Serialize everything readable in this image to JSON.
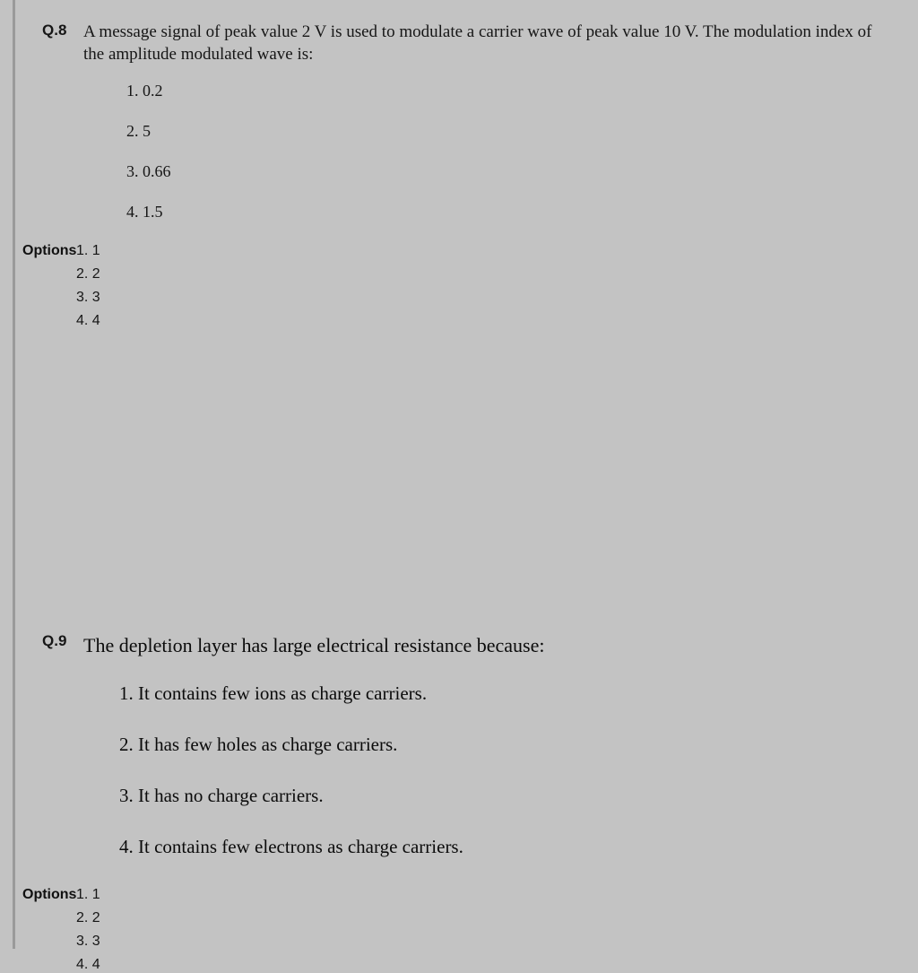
{
  "q8": {
    "number": "Q.8",
    "text": "A message signal of peak value 2 V is used to modulate a carrier wave of peak value 10 V. The modulation index of the amplitude modulated wave is:",
    "answers": [
      "1. 0.2",
      "2. 5",
      "3. 0.66",
      "4. 1.5"
    ],
    "options_label": "Options",
    "options": [
      "1. 1",
      "2. 2",
      "3. 3",
      "4. 4"
    ]
  },
  "q9": {
    "number": "Q.9",
    "text": "The depletion layer has large electrical resistance because:",
    "answers": [
      "1. It contains few ions as charge carriers.",
      "2. It has few holes as charge carriers.",
      "3. It has no charge carriers.",
      "4. It contains few electrons as charge carriers."
    ],
    "options_label": "Options",
    "options": [
      "1. 1",
      "2. 2",
      "3. 3",
      "4. 4"
    ]
  }
}
